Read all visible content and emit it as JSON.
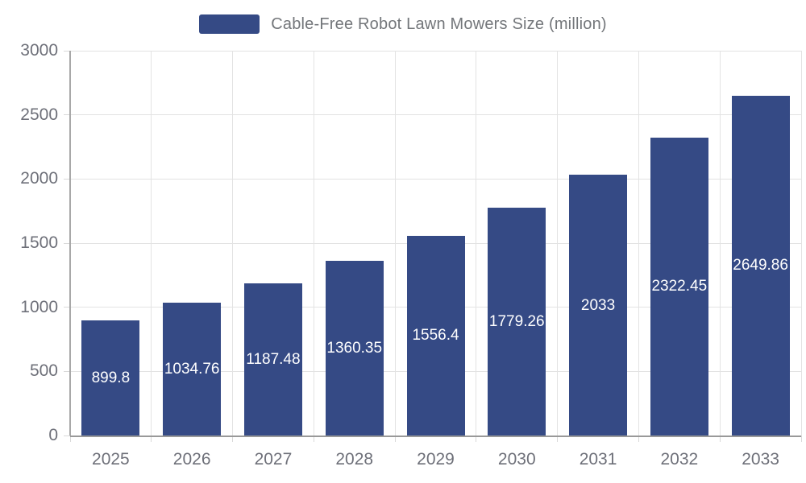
{
  "legend": {
    "label": "Cable-Free Robot Lawn Mowers Size (million)"
  },
  "colors": {
    "bar": "#354a85",
    "grid": "#e3e3e3",
    "tick": "#d9d9d9",
    "x_axis_line": "#999999",
    "y_axis_line": "#a8a8a8",
    "axis_text": "#6e7079",
    "bar_label_text": "#ffffff",
    "legend_text": "#73767a",
    "background": "#ffffff"
  },
  "chart_data": {
    "type": "bar",
    "title": "Cable-Free Robot Lawn Mowers Size (million)",
    "categories": [
      "2025",
      "2026",
      "2027",
      "2028",
      "2029",
      "2030",
      "2031",
      "2032",
      "2033"
    ],
    "series": [
      {
        "name": "Cable-Free Robot Lawn Mowers Size (million)",
        "values": [
          899.8,
          1034.76,
          1187.48,
          1360.35,
          1556.4,
          1779.26,
          2033,
          2322.45,
          2649.86
        ]
      }
    ],
    "bar_labels": [
      "899.8",
      "1034.76",
      "1187.48",
      "1360.35",
      "1556.4",
      "1779.26",
      "2033",
      "2322.45",
      "2649.86"
    ],
    "xlabel": "",
    "ylabel": "",
    "ylim": [
      0,
      3000
    ],
    "yticks": [
      0,
      500,
      1000,
      1500,
      2000,
      2500,
      3000
    ],
    "grid": true,
    "legend_position": "top"
  }
}
